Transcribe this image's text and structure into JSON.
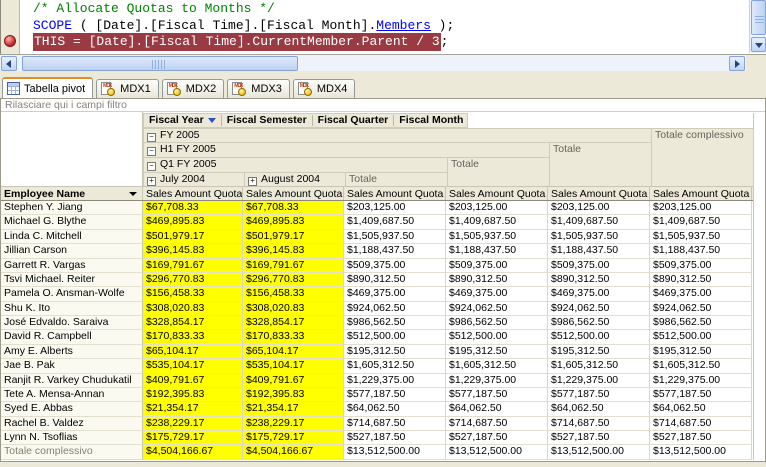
{
  "editor": {
    "code_lines": [
      {
        "segments": [
          {
            "text": "/* Allocate Quotas to Months */",
            "style": "comment"
          }
        ]
      },
      {
        "segments": [
          {
            "text": "SCOPE",
            "style": "keyword"
          },
          {
            "text": " ( [Date].[Fiscal Time].[Fiscal Month].",
            "style": "plain"
          },
          {
            "text": "Members",
            "style": "member"
          },
          {
            "text": " );",
            "style": "plain"
          }
        ]
      },
      {
        "segments": [
          {
            "text": "THIS = [Date].[Fiscal Time].CurrentMember.Parent / 3",
            "style": "highlight"
          },
          {
            "text": ";",
            "style": "plain"
          }
        ]
      }
    ],
    "breakpoint_line": 3
  },
  "tabs": [
    {
      "label": "Tabella pivot",
      "icon": "pivot-table-icon",
      "active": true
    },
    {
      "label": "MDX1",
      "icon": "mdx-document-icon",
      "active": false
    },
    {
      "label": "MDX2",
      "icon": "mdx-document-icon",
      "active": false
    },
    {
      "label": "MDX3",
      "icon": "mdx-document-icon",
      "active": false
    },
    {
      "label": "MDX4",
      "icon": "mdx-document-icon",
      "active": false
    }
  ],
  "pivot": {
    "filter_hint": "Rilasciare qui i campi filtro",
    "column_fields": [
      "Fiscal Year",
      "Fiscal Semester",
      "Fiscal Quarter",
      "Fiscal Month"
    ],
    "row_field": "Employee Name",
    "hierarchy": {
      "year": "FY 2005",
      "semester": "H1 FY 2005",
      "quarter": "Q1 FY 2005",
      "months": [
        "July 2004",
        "August 2004"
      ],
      "subtotal_label": "Totale",
      "grand_total_label": "Totale complessivo"
    },
    "measure_header": "Sales Amount Quota",
    "measure_column_count": 6,
    "highlight_color": "#ffff00",
    "rows": [
      {
        "name": "Stephen Y. Jiang",
        "monthly": "$67,708.33",
        "total": "$203,125.00"
      },
      {
        "name": "Michael G. Blythe",
        "monthly": "$469,895.83",
        "total": "$1,409,687.50"
      },
      {
        "name": "Linda C. Mitchell",
        "monthly": "$501,979.17",
        "total": "$1,505,937.50"
      },
      {
        "name": "Jillian Carson",
        "monthly": "$396,145.83",
        "total": "$1,188,437.50"
      },
      {
        "name": "Garrett R. Vargas",
        "monthly": "$169,791.67",
        "total": "$509,375.00"
      },
      {
        "name": "Tsvi Michael. Reiter",
        "monthly": "$296,770.83",
        "total": "$890,312.50"
      },
      {
        "name": "Pamela O. Ansman-Wolfe",
        "monthly": "$156,458.33",
        "total": "$469,375.00"
      },
      {
        "name": "Shu K. Ito",
        "monthly": "$308,020.83",
        "total": "$924,062.50"
      },
      {
        "name": "José Edvaldo. Saraiva",
        "monthly": "$328,854.17",
        "total": "$986,562.50"
      },
      {
        "name": "David R. Campbell",
        "monthly": "$170,833.33",
        "total": "$512,500.00"
      },
      {
        "name": "Amy E. Alberts",
        "monthly": "$65,104.17",
        "total": "$195,312.50"
      },
      {
        "name": "Jae B. Pak",
        "monthly": "$535,104.17",
        "total": "$1,605,312.50"
      },
      {
        "name": "Ranjit R. Varkey Chudukatil",
        "monthly": "$409,791.67",
        "total": "$1,229,375.00"
      },
      {
        "name": "Tete A. Mensa-Annan",
        "monthly": "$192,395.83",
        "total": "$577,187.50"
      },
      {
        "name": "Syed E. Abbas",
        "monthly": "$21,354.17",
        "total": "$64,062.50"
      },
      {
        "name": "Rachel B. Valdez",
        "monthly": "$238,229.17",
        "total": "$714,687.50"
      },
      {
        "name": "Lynn N. Tsoflias",
        "monthly": "$175,729.17",
        "total": "$527,187.50"
      }
    ],
    "grand_total_row": {
      "name": "Totale complessivo",
      "monthly": "$4,504,166.67",
      "total": "$13,512,500.00"
    }
  },
  "colors": {
    "comment": "#008000",
    "keyword": "#0000ff",
    "member_link": "#0000ff",
    "statement_highlight_bg": "#9a3b44",
    "statement_highlight_fg": "#ffffff",
    "column_highlight": "#ffff00",
    "chrome": "#ece9d8",
    "active_tab_accent": "#e68b2c"
  }
}
